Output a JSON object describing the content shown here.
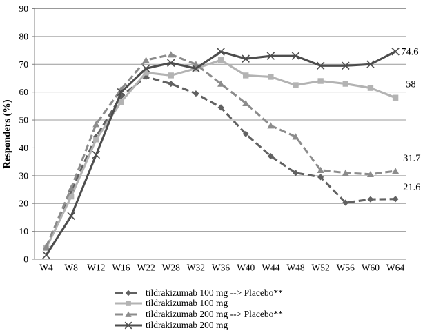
{
  "chart_data": {
    "type": "line",
    "title": "",
    "xlabel": "",
    "ylabel": "Responders (%)",
    "ylim": [
      0,
      90
    ],
    "ytick_step": 10,
    "yticks": [
      0,
      10,
      20,
      30,
      40,
      50,
      60,
      70,
      80,
      90
    ],
    "grid": "horizontal",
    "legend_position": "bottom",
    "categories": [
      "W4",
      "W8",
      "W12",
      "W16",
      "W22",
      "W28",
      "W32",
      "W36",
      "W40",
      "W44",
      "W48",
      "W52",
      "W56",
      "W60",
      "W64"
    ],
    "series": [
      {
        "name": "tildrakizumab 100 mg --> Placebo**",
        "marker": "diamond",
        "line_style": "dashed",
        "color": "#616161",
        "values": [
          4.5,
          24.5,
          44,
          58.5,
          65.5,
          63,
          59.5,
          54.5,
          45,
          37,
          31,
          29.5,
          20.3,
          21.5,
          21.6
        ],
        "end_label": "21.6",
        "label_dx": 11,
        "label_dy": -13
      },
      {
        "name": "tildrakizumab 100 mg",
        "marker": "square",
        "line_style": "solid",
        "color": "#b3b3b3",
        "values": [
          4,
          22.5,
          43,
          56.5,
          67,
          66,
          68.5,
          71.5,
          66,
          65.5,
          62.5,
          64,
          63,
          61.5,
          58
        ],
        "end_label": "58",
        "label_dx": 15,
        "label_dy": -15
      },
      {
        "name": "tildrakizumab 200 mg --> Placebo**",
        "marker": "triangle",
        "line_style": "dashed",
        "color": "#8c8c8c",
        "values": [
          4.5,
          25.5,
          48.5,
          61,
          71.5,
          73.5,
          70,
          63,
          56,
          48,
          44,
          32,
          31,
          30.5,
          31.7
        ],
        "end_label": "31.7",
        "label_dx": 11,
        "label_dy": -14
      },
      {
        "name": "tildrakizumab 200 mg",
        "marker": "x",
        "line_style": "solid",
        "color": "#4d4d4d",
        "values": [
          1.5,
          15.5,
          37.5,
          60,
          68.5,
          70.5,
          68.5,
          74.5,
          72,
          73,
          73,
          69.5,
          69.5,
          70,
          74.6
        ],
        "end_label": "74.6",
        "label_dx": 8,
        "label_dy": 5
      }
    ]
  }
}
